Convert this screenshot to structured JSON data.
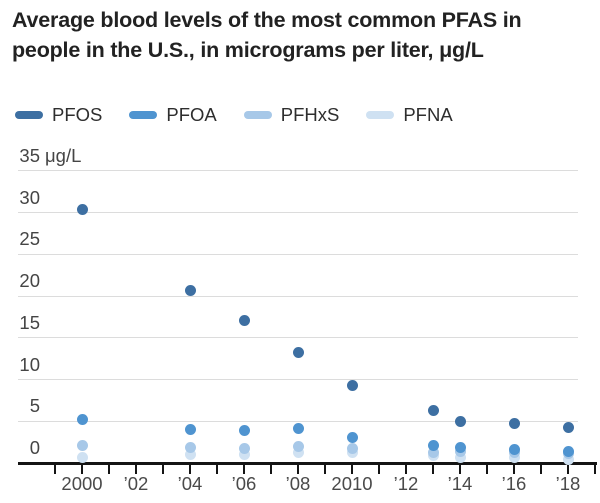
{
  "title": {
    "line1": "Average blood levels of the most common PFAS in",
    "line2": "people in the U.S., in micrograms per liter, μg/L"
  },
  "legend": {
    "items": [
      {
        "label": "PFOS",
        "color": "#3d6fa2"
      },
      {
        "label": "PFOA",
        "color": "#4f94d0"
      },
      {
        "label": "PFHxS",
        "color": "#a7c8e8"
      },
      {
        "label": "PFNA",
        "color": "#cfe1f2"
      }
    ]
  },
  "chart_data": {
    "type": "scatter",
    "title": "Average blood levels of the most common PFAS in people in the U.S., in micrograms per liter, μg/L",
    "unit_label": "μg/L",
    "x": [
      2000,
      2004,
      2006,
      2008,
      2010,
      2013,
      2014,
      2016,
      2018
    ],
    "series": [
      {
        "name": "PFOS",
        "color": "#3d6fa2",
        "values": [
          30.4,
          20.7,
          17.1,
          13.2,
          9.3,
          6.3,
          5.0,
          4.7,
          4.3
        ]
      },
      {
        "name": "PFOA",
        "color": "#4f94d0",
        "values": [
          5.2,
          4.0,
          3.9,
          4.1,
          3.1,
          2.1,
          1.9,
          1.6,
          1.4
        ]
      },
      {
        "name": "PFHxS",
        "color": "#a7c8e8",
        "values": [
          2.1,
          1.9,
          1.7,
          2.0,
          1.7,
          1.3,
          1.4,
          1.2,
          1.1
        ]
      },
      {
        "name": "PFNA",
        "color": "#cfe1f2",
        "values": [
          0.6,
          1.0,
          1.0,
          1.2,
          1.3,
          0.9,
          0.7,
          0.6,
          0.4
        ]
      }
    ],
    "ylim": [
      0,
      35
    ],
    "yticks": [
      0,
      5,
      10,
      15,
      20,
      25,
      30,
      35
    ],
    "xlim": [
      1999,
      2019
    ],
    "xtick_labels": [
      {
        "year": 2000,
        "label": "2000"
      },
      {
        "year": 2002,
        "label": "’02"
      },
      {
        "year": 2004,
        "label": "’04"
      },
      {
        "year": 2006,
        "label": "’06"
      },
      {
        "year": 2008,
        "label": "’08"
      },
      {
        "year": 2010,
        "label": "2010"
      },
      {
        "year": 2012,
        "label": "’12"
      },
      {
        "year": 2014,
        "label": "’14"
      },
      {
        "year": 2016,
        "label": "’16"
      },
      {
        "year": 2018,
        "label": "’18"
      }
    ],
    "grid": "horizontal",
    "legend_position": "top-left"
  }
}
